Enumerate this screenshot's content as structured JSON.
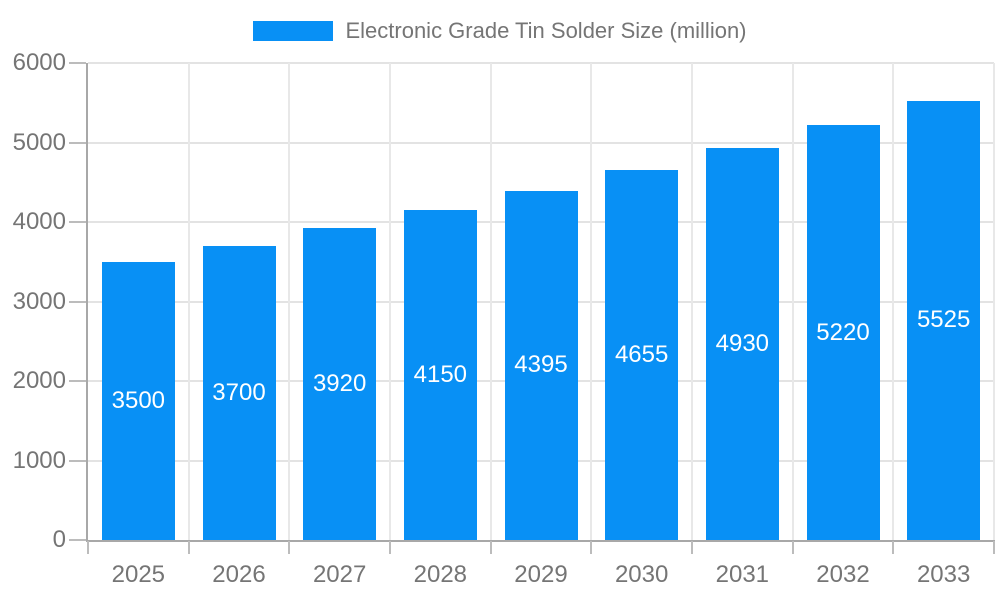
{
  "legend": {
    "label": "Electronic Grade Tin Solder Size (million)",
    "swatch_color": "#0890f5"
  },
  "chart_data": {
    "type": "bar",
    "title": "Electronic Grade Tin Solder Size (million)",
    "categories": [
      "2025",
      "2026",
      "2027",
      "2028",
      "2029",
      "2030",
      "2031",
      "2032",
      "2033"
    ],
    "series": [
      {
        "name": "Electronic Grade Tin Solder Size (million)",
        "values": [
          3500,
          3700,
          3920,
          4150,
          4395,
          4655,
          4930,
          5220,
          5525
        ]
      }
    ],
    "data_labels_shown": true,
    "xlabel": "",
    "ylabel": "",
    "ylim": [
      0,
      6000
    ],
    "yticks": [
      0,
      1000,
      2000,
      3000,
      4000,
      5000,
      6000
    ],
    "grid": true,
    "legend_position": "top-center",
    "bar_color": "#0890f5",
    "data_label_color": "#ffffff",
    "axis_text_color": "#757575",
    "gridline_color": "#e3e3e3",
    "axis_line_color": "#a8a8a8",
    "background_color": "#ffffff"
  }
}
